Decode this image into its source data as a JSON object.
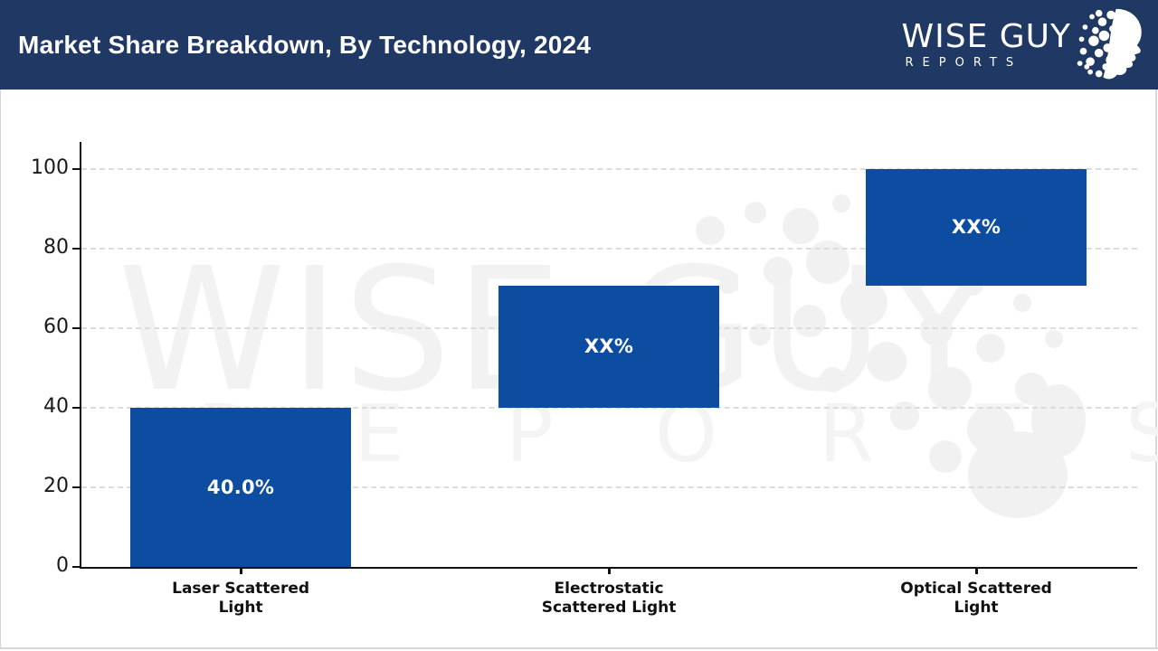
{
  "header": {
    "title": "Market Share Breakdown, By Technology, 2024",
    "logo": {
      "primary": "WISE GUY",
      "secondary": "REPORTS",
      "face_icon": "dotted-face-profile"
    }
  },
  "watermark": {
    "primary": "WISE GUY",
    "secondary": "R E P O R T S"
  },
  "chart_data": {
    "type": "bar",
    "subtype": "waterfall-stacked-percentage",
    "title": "Market Share Breakdown, By Technology, 2024",
    "categories": [
      "Laser Scattered\nLight",
      "Electrostatic\nScattered Light",
      "Optical Scattered\nLight"
    ],
    "bars": [
      {
        "category": "Laser Scattered Light",
        "start": 0,
        "end": 40,
        "label": "40.0%"
      },
      {
        "category": "Electrostatic Scattered Light",
        "start": 40,
        "end": 70.7,
        "label": "XX%"
      },
      {
        "category": "Optical Scattered Light",
        "start": 70.7,
        "end": 100,
        "label": "XX%"
      }
    ],
    "ylim": [
      0,
      100
    ],
    "yticks": [
      0,
      20,
      40,
      60,
      80,
      100
    ],
    "xlabel": "",
    "ylabel": "",
    "grid": "horizontal-dashed",
    "legend": "none",
    "colors": {
      "bar": "#0C4DA2",
      "bar_label": "#FFFFFF",
      "grid": "#DCDCDC",
      "axis": "#111111",
      "header_bg": "#1F3864",
      "watermark": "#F2F2F2"
    }
  }
}
